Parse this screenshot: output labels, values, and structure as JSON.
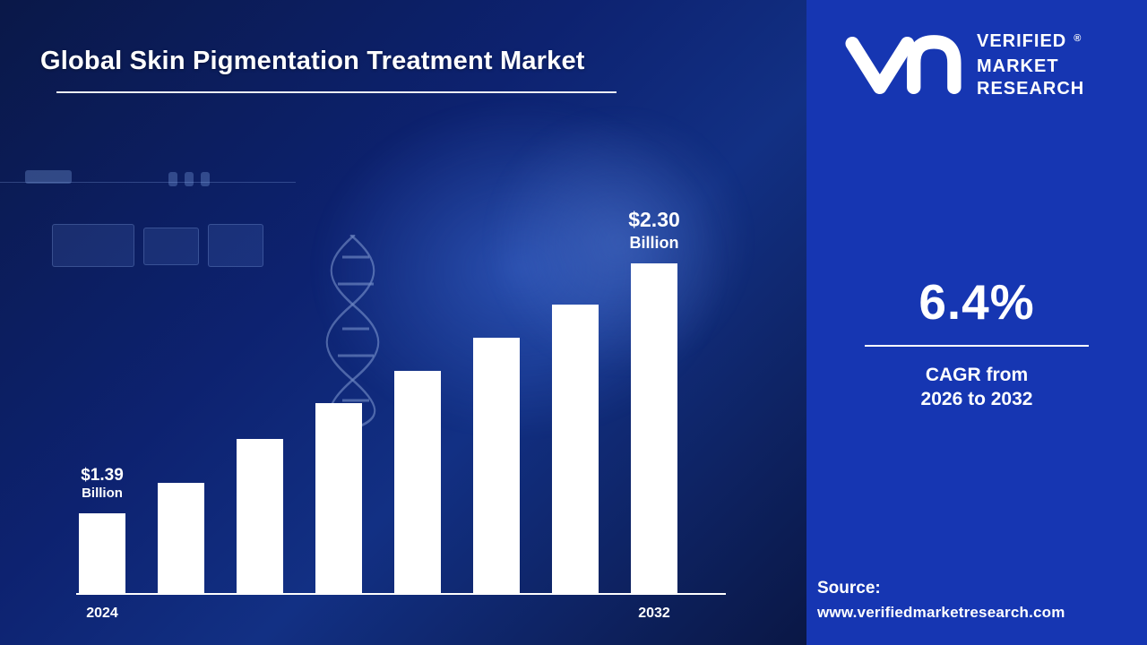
{
  "page": {
    "title": "Global Skin Pigmentation Treatment Market"
  },
  "brand": {
    "name_lines": [
      "VERIFIED",
      "MARKET",
      "RESEARCH"
    ],
    "registered_mark": "®",
    "logo": "vmr-monogram"
  },
  "stats": {
    "cagr_value": "6.4%",
    "cagr_caption_line1": "CAGR from",
    "cagr_caption_line2": "2026 to 2032"
  },
  "source": {
    "label": "Source:",
    "url": "www.verifiedmarketresearch.com"
  },
  "chart_data": {
    "type": "bar",
    "title": "Global Skin Pigmentation Treatment Market",
    "unit": "USD Billion",
    "categories": [
      "2024",
      "",
      "",
      "",
      "",
      "",
      "",
      "2032"
    ],
    "values": [
      1.39,
      1.5,
      1.66,
      1.79,
      1.91,
      2.03,
      2.15,
      2.3
    ],
    "visible_x_labels": [
      "2024",
      "2032"
    ],
    "annotations": [
      {
        "bar_index": 0,
        "line1": "$1.39",
        "line2": "Billion"
      },
      {
        "bar_index": 7,
        "line1": "$2.30",
        "line2": "Billion"
      }
    ],
    "bar_color": "#ffffff",
    "background_color": "#0d2270",
    "panel_color": "#1636b2",
    "axis_line": true,
    "value_axis_hidden": true,
    "legend": false,
    "xlabel": "",
    "ylabel": ""
  }
}
